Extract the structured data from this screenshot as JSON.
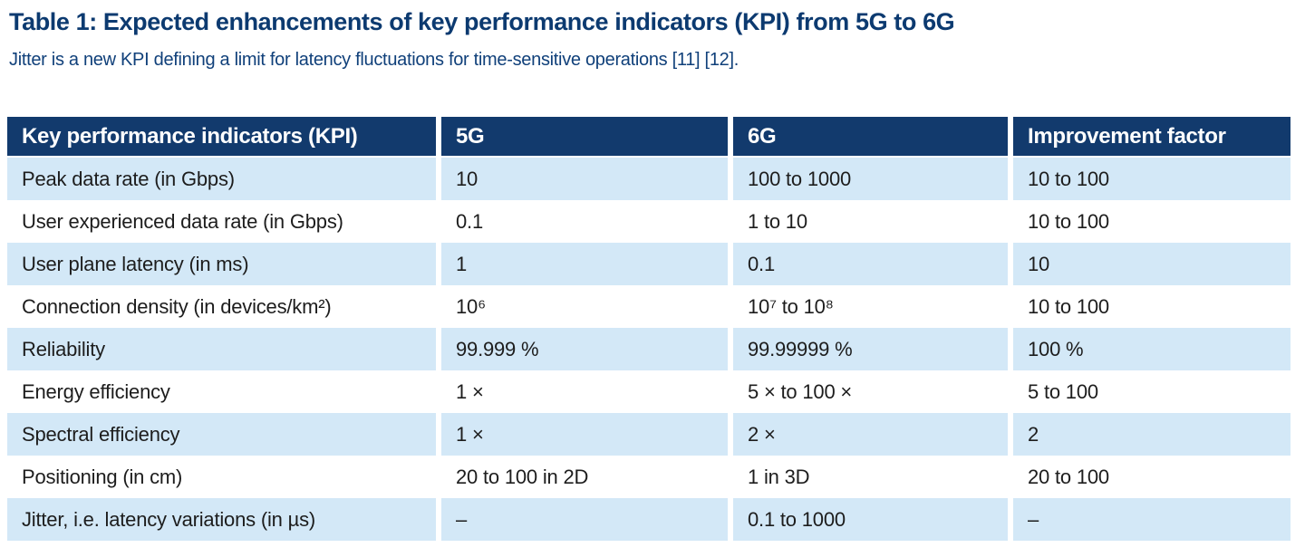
{
  "page": {
    "title": "Table 1: Expected enhancements of key performance indicators (KPI) from 5G to 6G",
    "subtitle": "Jitter is a new KPI defining a limit for latency fluctuations for time-sensitive operations [11] [12]."
  },
  "colors": {
    "title_blue": "#0C3A70",
    "header_bg_navy": "#123A6D",
    "header_text": "#FFFFFF",
    "row_highlight_blue": "#D3E8F7",
    "cell_text": "#1D1D1D"
  },
  "chart_data": {
    "type": "table",
    "title": "Table 1: Expected enhancements of key performance indicators (KPI) from 5G to 6G",
    "headers": [
      "Key performance indicators (KPI)",
      "5G",
      "6G",
      "Improvement factor"
    ],
    "rows": [
      [
        "Peak data rate (in Gbps)",
        "10",
        "100 to 1000",
        "10 to 100"
      ],
      [
        "User experienced data rate (in Gbps)",
        "0.1",
        "1 to 10",
        "10 to 100"
      ],
      [
        "User plane latency (in ms)",
        "1",
        "0.1",
        "10"
      ],
      [
        "Connection density (in devices/km²)",
        "10⁶",
        "10⁷ to 10⁸",
        "10 to 100"
      ],
      [
        "Reliability",
        "99.999 %",
        "99.99999 %",
        "100 %"
      ],
      [
        "Energy efficiency",
        "1 ×",
        "5 × to 100 ×",
        "5 to 100"
      ],
      [
        "Spectral efficiency",
        "1 ×",
        "2 ×",
        "2"
      ],
      [
        "Positioning (in cm)",
        "20 to 100 in 2D",
        "1 in 3D",
        "20 to 100"
      ],
      [
        "Jitter, i.e. latency variations (in µs)",
        "–",
        "0.1 to 1000",
        "–"
      ]
    ]
  }
}
